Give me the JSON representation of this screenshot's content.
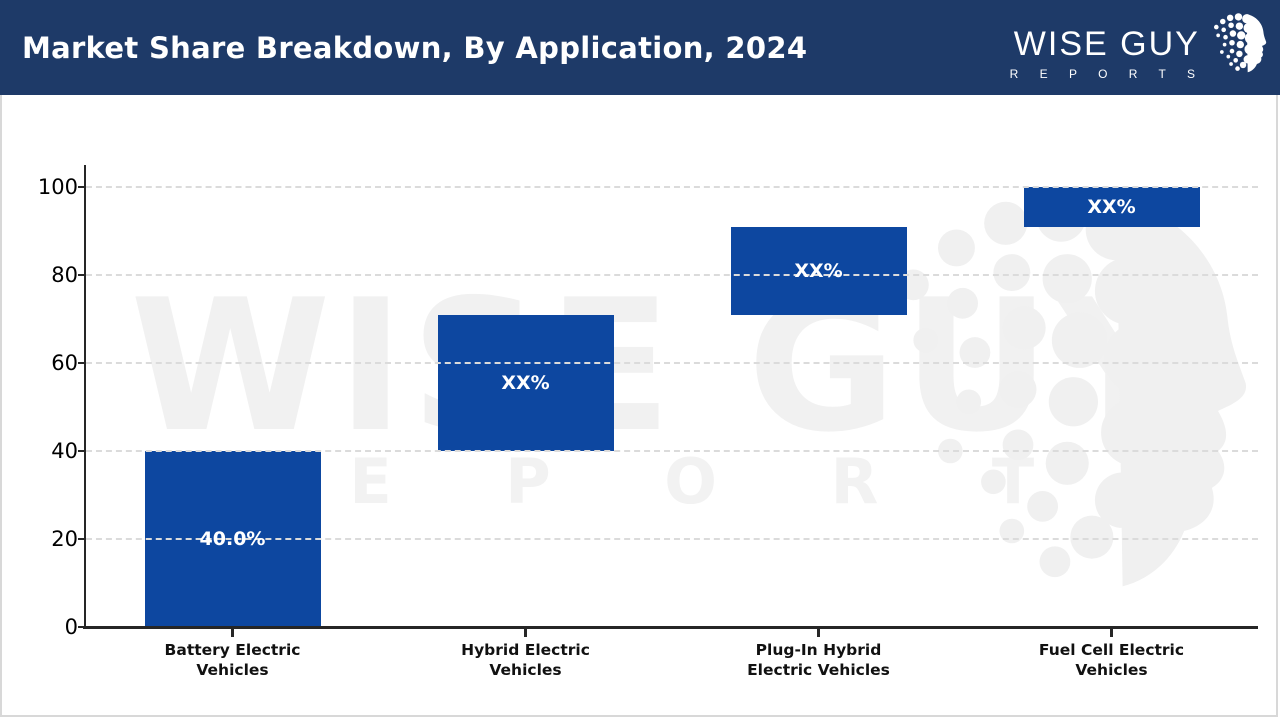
{
  "header": {
    "title": "Market Share Breakdown, By Application, 2024",
    "bg_color": "#1e3a68",
    "logo": {
      "wordmark": "WISE GUY",
      "subtext": "R E P O R T S"
    }
  },
  "watermark": {
    "wordmark": "WISE GUY",
    "subtext": "R E P O R T S"
  },
  "chart_data": {
    "type": "bar",
    "subtype": "waterfall",
    "title": "Market Share Breakdown, By Application, 2024",
    "categories": [
      "Battery Electric\nVehicles",
      "Hybrid Electric\nVehicles",
      "Plug-In Hybrid\nElectric Vehicles",
      "Fuel Cell Electric\nVehicles"
    ],
    "segments": [
      {
        "start": 0,
        "end": 40,
        "label": "40.0%"
      },
      {
        "start": 40,
        "end": 71,
        "label": "XX%"
      },
      {
        "start": 71,
        "end": 91,
        "label": "XX%"
      },
      {
        "start": 91,
        "end": 100,
        "label": "XX%"
      }
    ],
    "values": [
      40,
      31,
      20,
      9
    ],
    "yticks": [
      0,
      20,
      40,
      60,
      80,
      100
    ],
    "ylim": [
      0,
      105
    ],
    "grid": "horizontal-dashed",
    "legend": "none",
    "bar_color": "#0d47a0",
    "bar_label_color": "#ffffff",
    "axis_color": "#262626",
    "gridline_color": "#dbdbdb",
    "tick_label_color": "#000000",
    "category_label_color": "#111111"
  }
}
